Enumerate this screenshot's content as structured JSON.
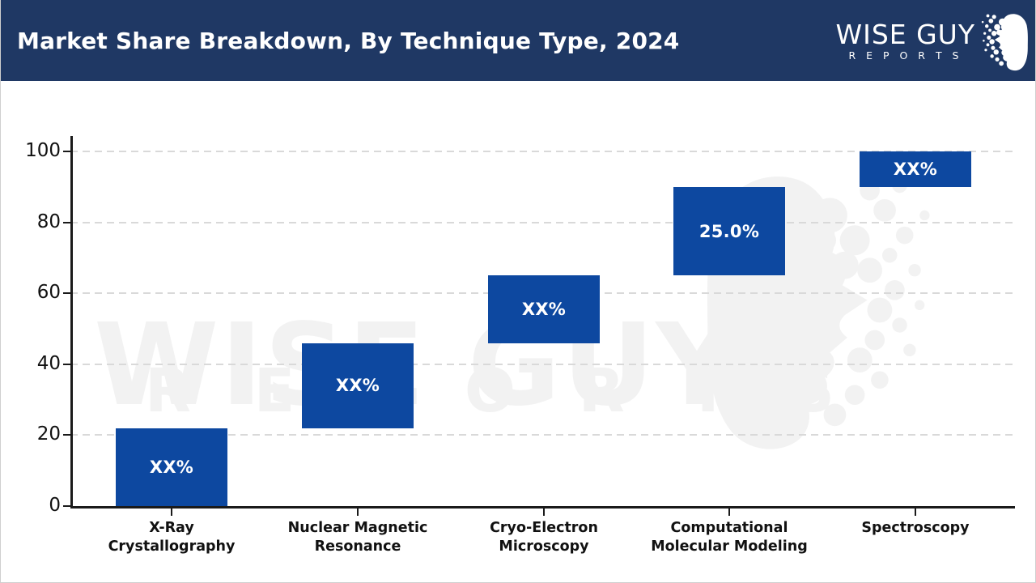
{
  "header": {
    "title": "Market Share Breakdown, By Technique Type, 2024",
    "background_color": "#1f3864",
    "logo": {
      "name": "WISE GUY",
      "subtitle": "R E P O R T S"
    }
  },
  "watermark": {
    "line1": "WISE GUY",
    "line2": "R E P O R T S",
    "color": "#f2f2f2"
  },
  "chart_data": {
    "type": "bar",
    "subtype": "floating-waterfall-columns",
    "title": "Market Share Breakdown, By Technique Type, 2024",
    "categories": [
      "X-Ray\nCrystallography",
      "Nuclear Magnetic\nResonance",
      "Cryo-Electron\nMicroscopy",
      "Computational\nMolecular Modeling",
      "Spectroscopy"
    ],
    "segments": [
      {
        "start": 0,
        "end": 22
      },
      {
        "start": 22,
        "end": 46
      },
      {
        "start": 46,
        "end": 65
      },
      {
        "start": 65,
        "end": 90
      },
      {
        "start": 90,
        "end": 100
      }
    ],
    "values": [
      22,
      24,
      19,
      25,
      10
    ],
    "bar_labels": [
      "XX%",
      "XX%",
      "XX%",
      "25.0%",
      "XX%"
    ],
    "yticks": [
      0,
      20,
      40,
      60,
      80,
      100
    ],
    "ylim": [
      0,
      100
    ],
    "xlabel": "",
    "ylabel": "",
    "grid": "horizontal-dashed",
    "legend": "none",
    "bar_color": "#0d48a0",
    "bar_label_color": "#ffffff",
    "axis_color": "#1a1a1a",
    "grid_color": "#d9d9d9",
    "tick_label_color": "#111111"
  }
}
